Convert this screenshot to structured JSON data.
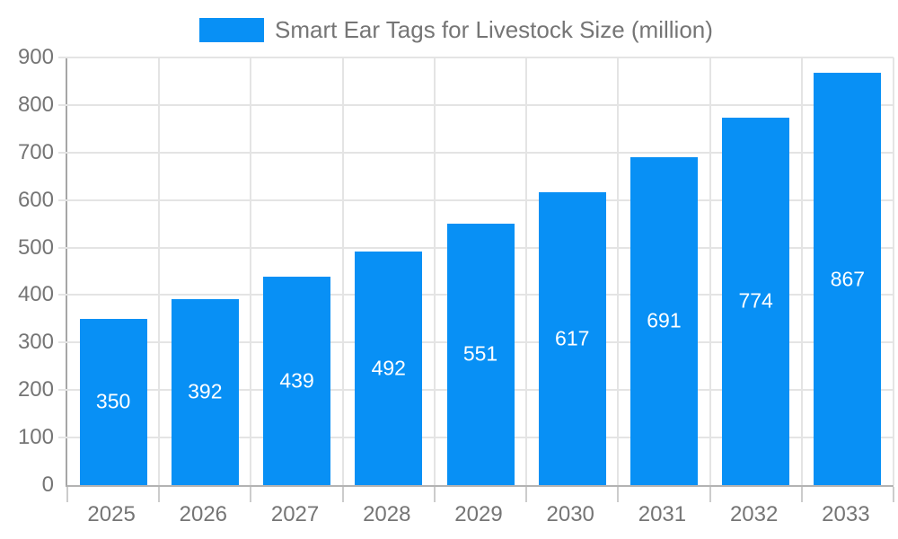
{
  "legend": {
    "label": "Smart Ear Tags for Livestock Size (million)"
  },
  "chart_data": {
    "type": "bar",
    "title": "Smart Ear Tags for Livestock Size (million)",
    "categories": [
      "2025",
      "2026",
      "2027",
      "2028",
      "2029",
      "2030",
      "2031",
      "2032",
      "2033"
    ],
    "values": [
      350,
      392,
      439,
      492,
      551,
      617,
      691,
      774,
      867
    ],
    "xlabel": "",
    "ylabel": "",
    "ylim": [
      0,
      900
    ],
    "yticks": [
      0,
      100,
      200,
      300,
      400,
      500,
      600,
      700,
      800,
      900
    ],
    "grid": true,
    "legend_position": "top",
    "value_labels": "inside-center"
  },
  "colors": {
    "bar": "#0890f5",
    "value_label": "#ffffff",
    "axis_text": "#757575",
    "gridline": "#e4e4e4",
    "y_axis_line": "#a6a6a6",
    "x_axis_line": "#b3b3b3",
    "tick": "#cccccc",
    "background": "#ffffff"
  }
}
